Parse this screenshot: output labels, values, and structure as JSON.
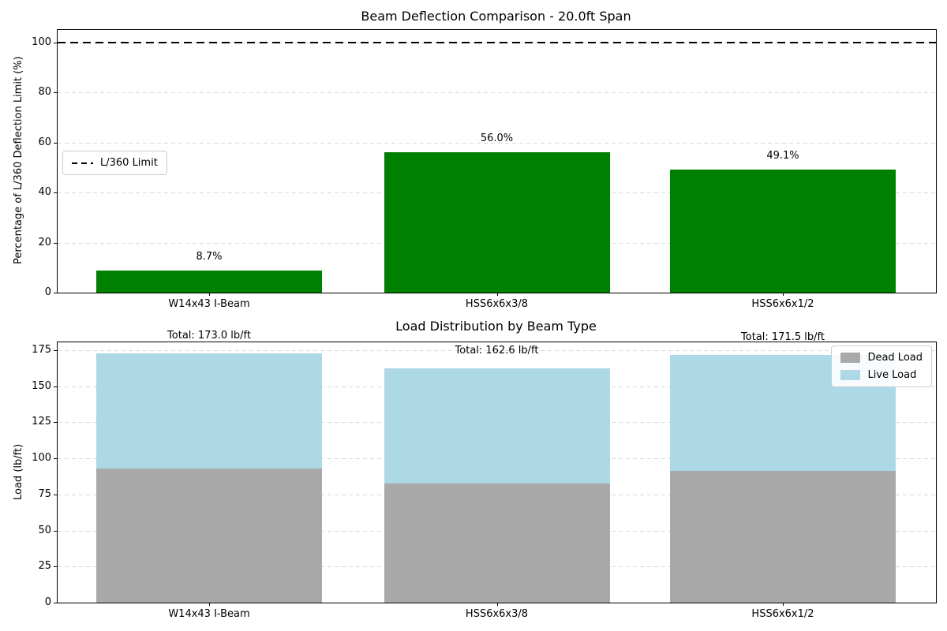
{
  "chart_data": [
    {
      "type": "bar",
      "title": "Beam Deflection Comparison - 20.0ft Span",
      "ylabel": "Percentage of L/360 Deflection Limit (%)",
      "xlabel": "",
      "categories": [
        "W14x43 I-Beam",
        "HSS6x6x3/8",
        "HSS6x6x1/2"
      ],
      "values": [
        8.7,
        56.0,
        49.1
      ],
      "value_labels": [
        "8.7%",
        "56.0%",
        "49.1%"
      ],
      "bar_color": "#008000",
      "yticks": [
        0,
        20,
        40,
        60,
        80,
        100
      ],
      "ylim": [
        0,
        105
      ],
      "grid": "dashed-horizontal",
      "ref_line": {
        "value": 100,
        "label": "L/360 Limit",
        "style": "dashed",
        "color": "#000000"
      },
      "legend_position": "upper-left",
      "legend": [
        {
          "label": "L/360 Limit",
          "swatch": "dashed-line",
          "color": "#000000"
        }
      ]
    },
    {
      "type": "stacked-bar",
      "title": "Load Distribution by Beam Type",
      "ylabel": "Load (lb/ft)",
      "xlabel": "",
      "categories": [
        "W14x43 I-Beam",
        "HSS6x6x3/8",
        "HSS6x6x1/2"
      ],
      "series": [
        {
          "name": "Dead Load",
          "color": "#a9a9a9",
          "values": [
            93.0,
            82.6,
            91.5
          ]
        },
        {
          "name": "Live Load",
          "color": "#add8e6",
          "values": [
            80.0,
            80.0,
            80.0
          ]
        }
      ],
      "totals": [
        173.0,
        162.6,
        171.5
      ],
      "total_labels": [
        "Total: 173.0 lb/ft",
        "Total: 162.6 lb/ft",
        "Total: 171.5 lb/ft"
      ],
      "yticks": [
        0,
        25,
        50,
        75,
        100,
        125,
        150,
        175
      ],
      "ylim": [
        0,
        180.5
      ],
      "grid": "dashed-horizontal",
      "legend_position": "upper-right",
      "legend": [
        {
          "label": "Dead Load",
          "swatch": "patch",
          "color": "#a9a9a9"
        },
        {
          "label": "Live Load",
          "swatch": "patch",
          "color": "#add8e6"
        }
      ]
    }
  ]
}
